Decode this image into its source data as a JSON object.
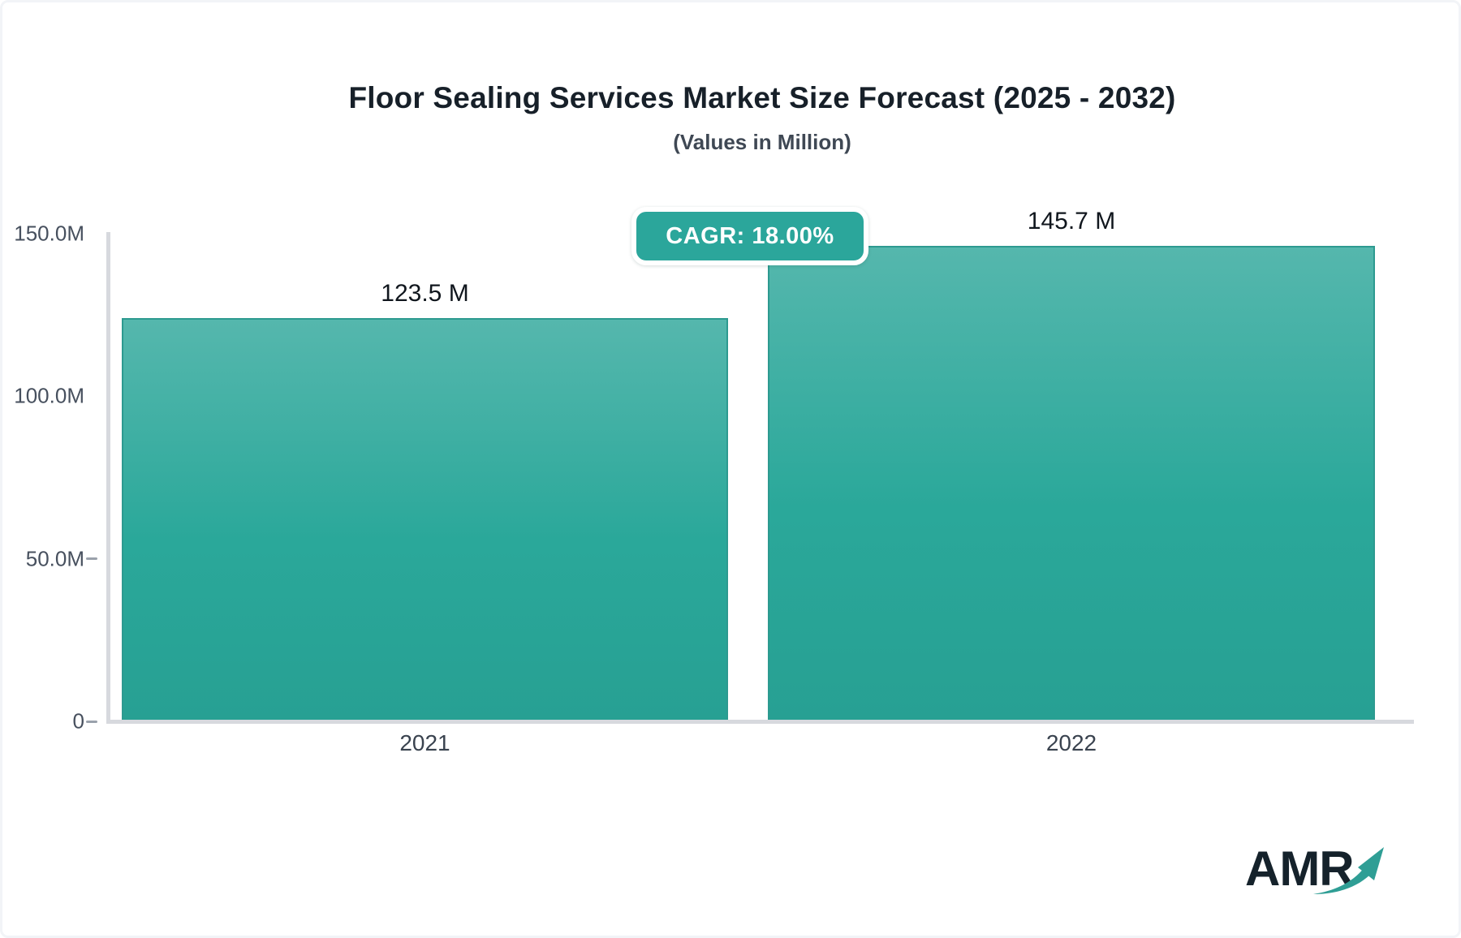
{
  "chart_data": {
    "type": "bar",
    "title": "Floor Sealing Services Market Size Forecast (2025 - 2032)",
    "subtitle": "(Values in Million)",
    "badge": {
      "label": "CAGR: 18.00%",
      "color": "#2BA69B"
    },
    "categories": [
      "2021",
      "2022"
    ],
    "values": [
      123.5,
      145.7
    ],
    "value_labels": [
      "123.5 M",
      "145.7 M"
    ],
    "unit": "Million",
    "ylim": [
      0,
      150
    ],
    "y_ticks": [
      {
        "label": "150.0M",
        "value": 150,
        "dash": false
      },
      {
        "label": "100.0M",
        "value": 100,
        "dash": false
      },
      {
        "label": "50.0M",
        "value": 50,
        "dash": true
      },
      {
        "label": "0",
        "value": 0,
        "dash": true
      }
    ],
    "grid": false,
    "legend": false,
    "colors": {
      "bar_top": "#55B7AD",
      "bar_bottom": "#27A093",
      "bar_border": "#2D9A90",
      "axis_line": "#D7D9DE"
    }
  },
  "logo": {
    "text": "AMR",
    "text_color": "#15222B",
    "arrow_color": "#2F9E95"
  }
}
